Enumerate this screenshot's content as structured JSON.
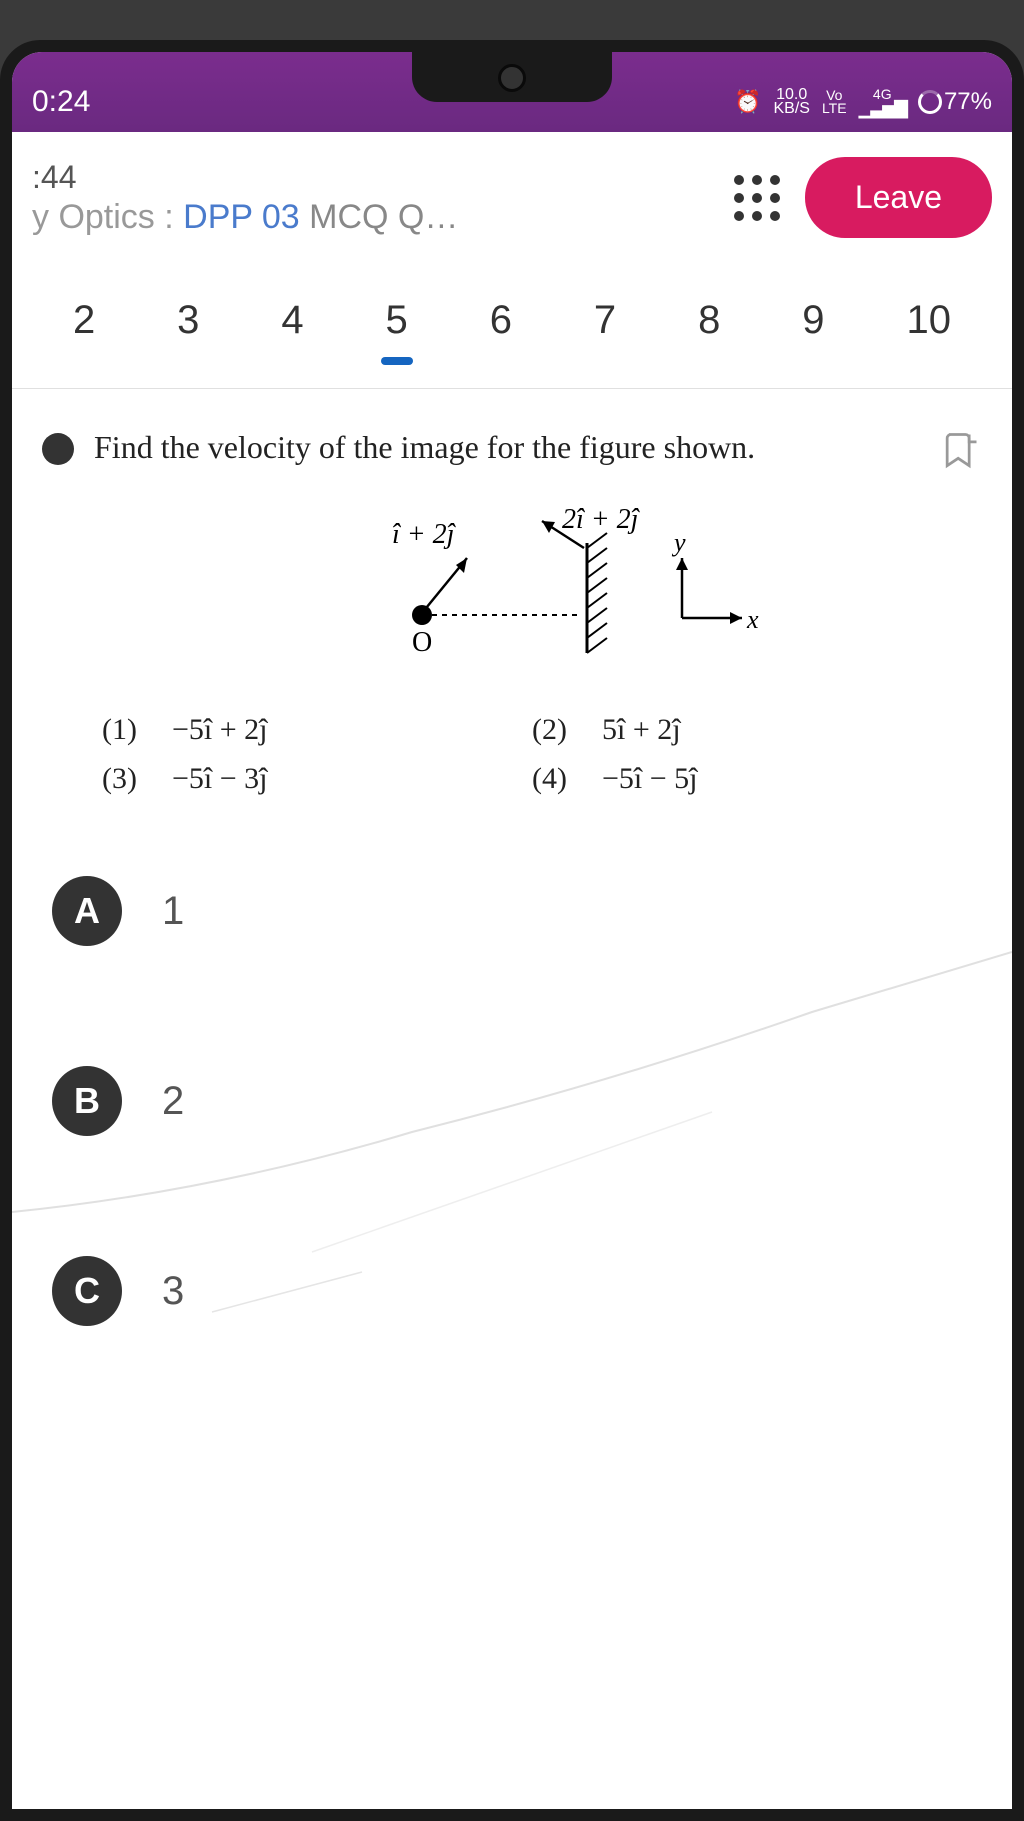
{
  "status_bar": {
    "time": "0:24",
    "data_speed_value": "10.0",
    "data_speed_unit": "KB/S",
    "volte_top": "Vo",
    "volte_bottom": "LTE",
    "signal_4g": "4G",
    "battery_percent": "77%"
  },
  "header": {
    "timer": ":44",
    "title_prefix": "y Optics : ",
    "title_middle": "DPP 03",
    "title_suffix": " MCQ Q…",
    "leave_label": "Leave"
  },
  "question_numbers": [
    "2",
    "3",
    "4",
    "5",
    "6",
    "7",
    "8",
    "9",
    "10"
  ],
  "active_question": "5",
  "question": {
    "text": "Find the velocity of the image for the figure shown.",
    "figure_labels": {
      "object_vel": "î + 2ĵ",
      "mirror_vel": "2î + 2ĵ",
      "origin": "O",
      "x_axis": "x",
      "y_axis": "y"
    },
    "options": [
      {
        "num": "(1)",
        "expr": "−5î + 2ĵ"
      },
      {
        "num": "(2)",
        "expr": "5î + 2ĵ"
      },
      {
        "num": "(3)",
        "expr": "−5î − 3ĵ"
      },
      {
        "num": "(4)",
        "expr": "−5î − 5ĵ"
      }
    ]
  },
  "answers": [
    {
      "letter": "A",
      "value": "1"
    },
    {
      "letter": "B",
      "value": "2"
    },
    {
      "letter": "C",
      "value": "3"
    }
  ],
  "colors": {
    "status_bg": "#6a2980",
    "leave_btn": "#d81b60",
    "active_tab": "#1565c0",
    "text_primary": "#222",
    "text_secondary": "#888"
  }
}
